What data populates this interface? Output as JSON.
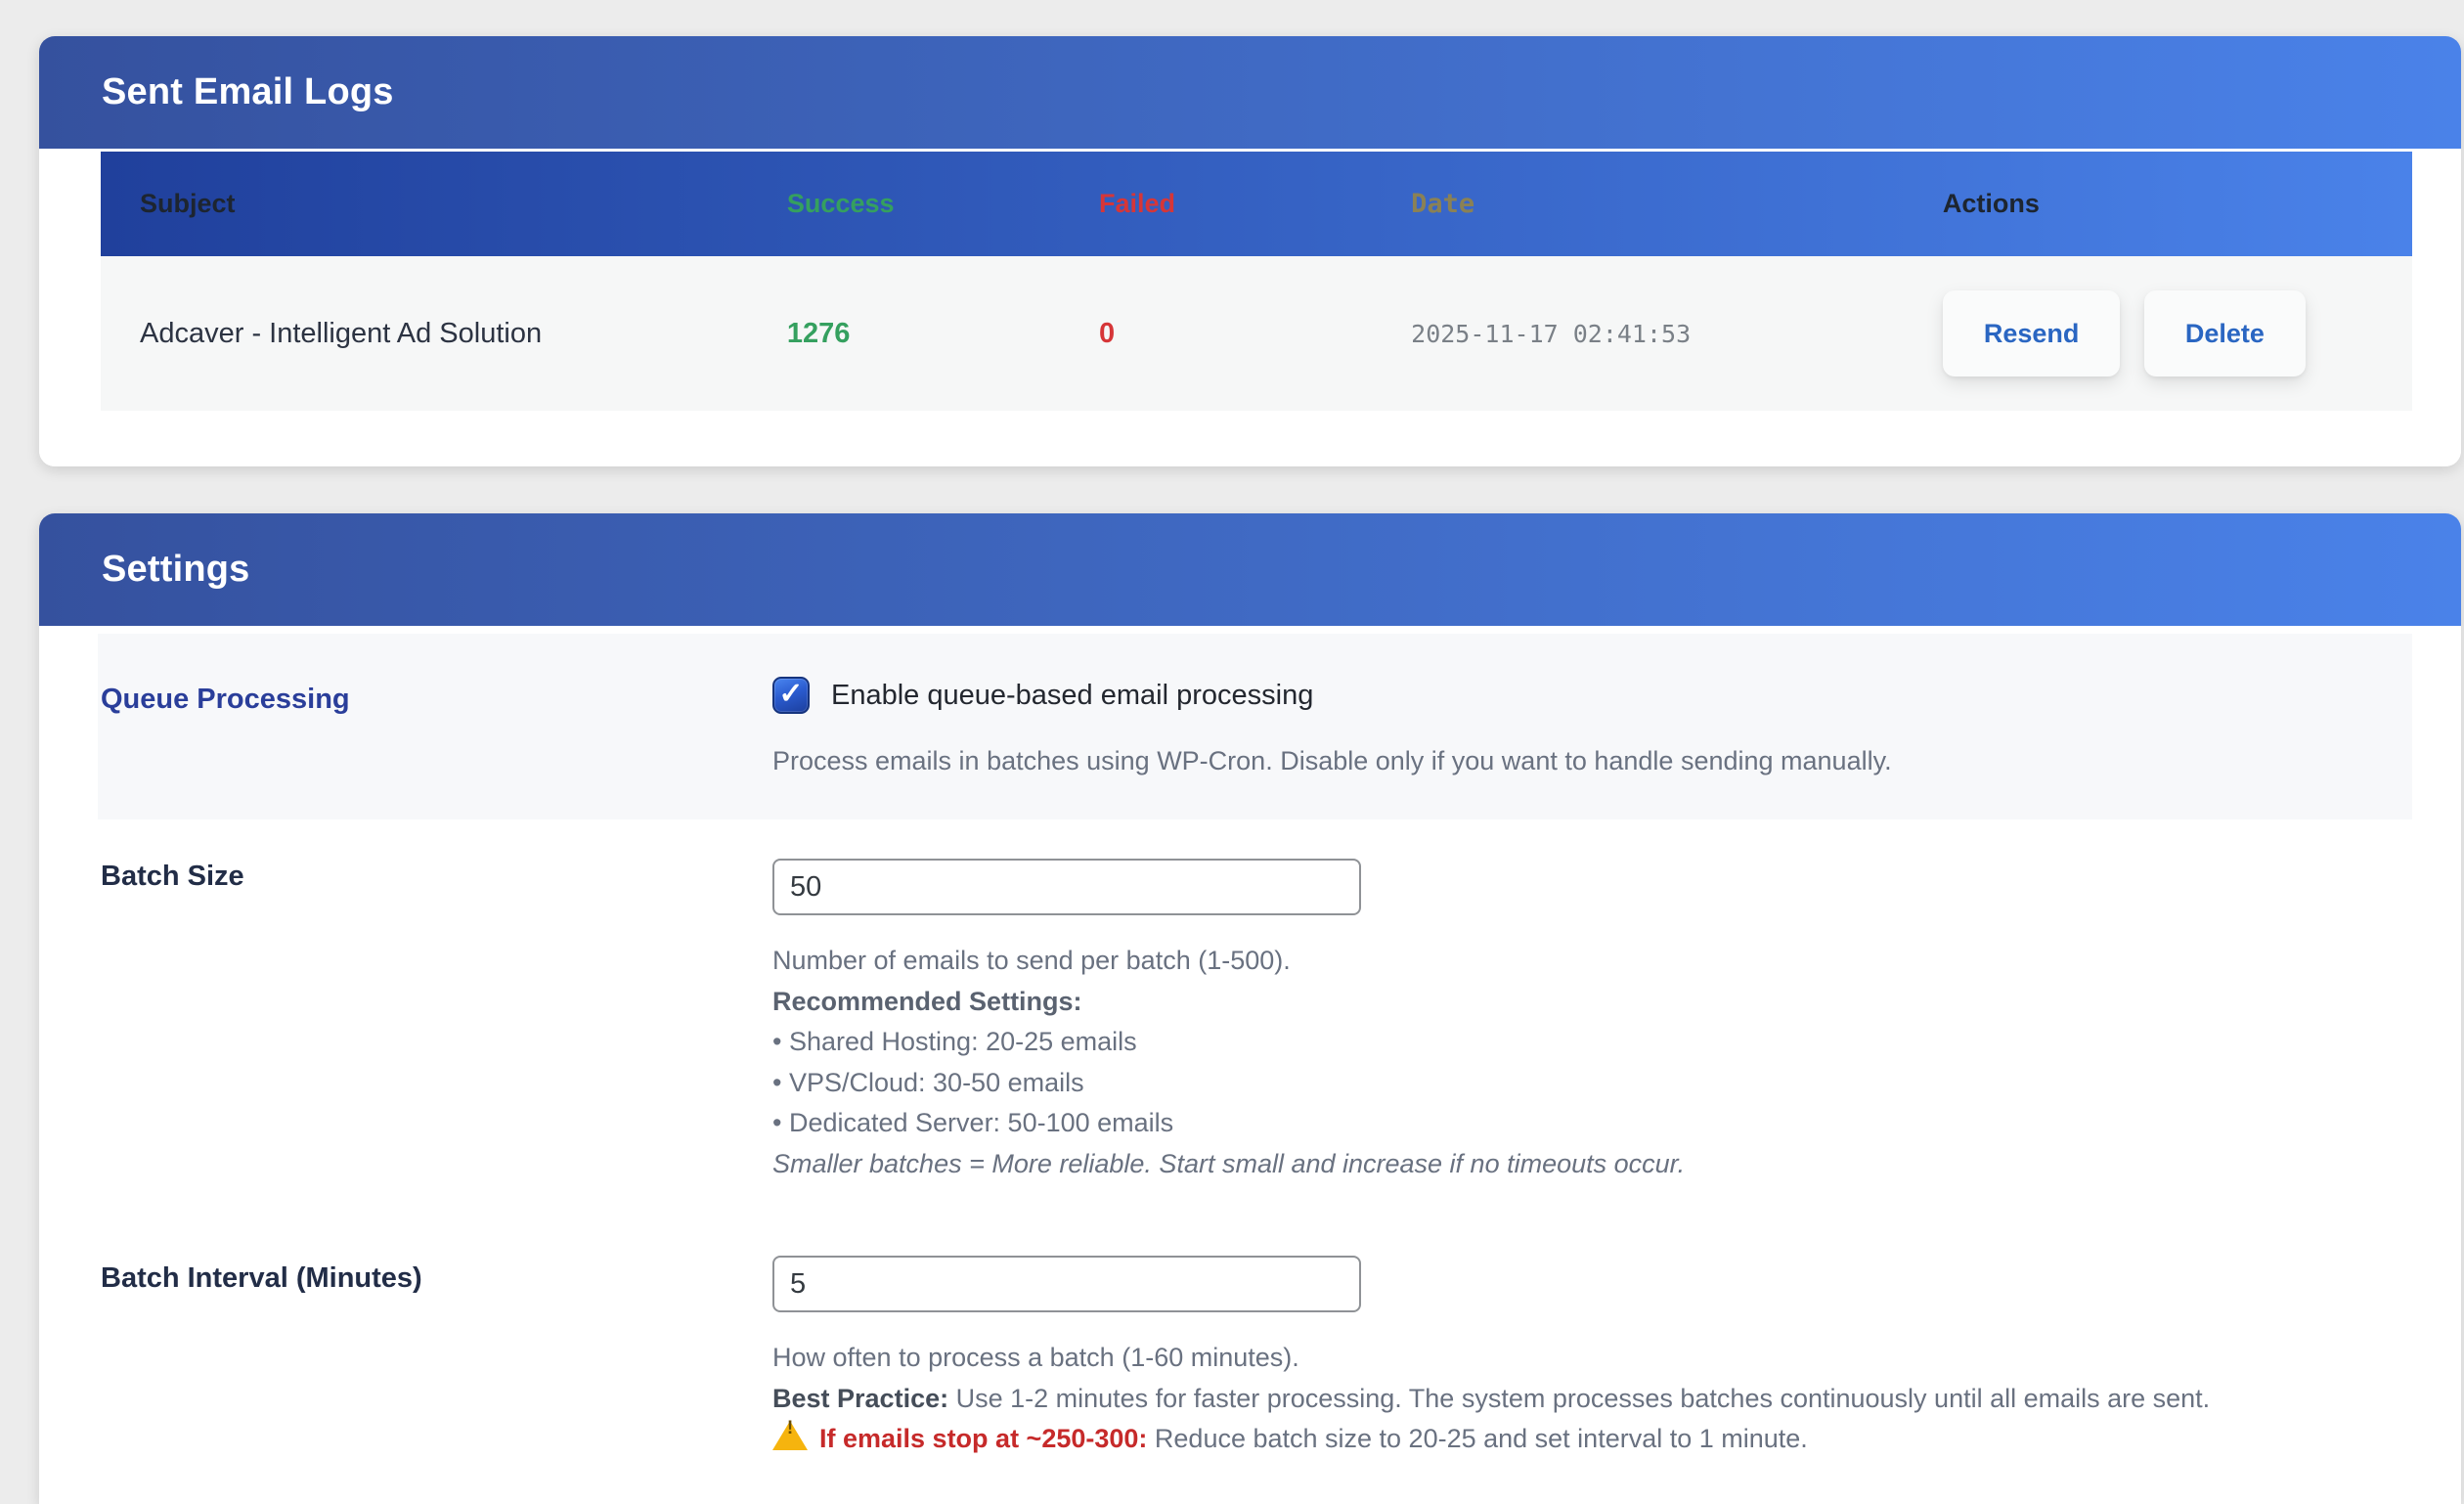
{
  "panels": {
    "logs": {
      "title": "Sent Email Logs",
      "columns": {
        "subject": "Subject",
        "success": "Success",
        "failed": "Failed",
        "date": "Date",
        "actions": "Actions"
      },
      "rows": [
        {
          "subject": "Adcaver - Intelligent Ad Solution",
          "success": "1276",
          "failed": "0",
          "date": "2025-11-17 02:41:53",
          "actions": {
            "resend": "Resend",
            "delete": "Delete"
          }
        }
      ]
    },
    "settings": {
      "title": "Settings",
      "queue_processing": {
        "label": "Queue Processing",
        "checkbox_label": "Enable queue-based email processing",
        "checked": true,
        "description": "Process emails in batches using WP-Cron. Disable only if you want to handle sending manually."
      },
      "batch_size": {
        "label": "Batch Size",
        "value": "50",
        "help": "Number of emails to send per batch (1-500).",
        "recommended_heading": "Recommended Settings:",
        "recommendations": [
          "• Shared Hosting: 20-25 emails",
          "• VPS/Cloud: 30-50 emails",
          "• Dedicated Server: 50-100 emails"
        ],
        "note": "Smaller batches = More reliable. Start small and increase if no timeouts occur."
      },
      "batch_interval": {
        "label": "Batch Interval (Minutes)",
        "value": "5",
        "help": "How often to process a batch (1-60 minutes).",
        "best_practice_label": "Best Practice:",
        "best_practice_text": " Use 1-2 minutes for faster processing. The system processes batches continuously until all emails are sent.",
        "warning_label": "If emails stop at ~250-300:",
        "warning_text": " Reduce batch size to 20-25 and set interval to 1 minute."
      }
    }
  },
  "icons": {
    "checkmark": "✓",
    "warning_exclamation": "!"
  },
  "colors": {
    "page-bg": "#ececec",
    "header-grad-start": "#35519e",
    "header-grad-end": "#4a82e9",
    "thead-grad-start": "#20409c",
    "col-subject": "#1d2530",
    "success-green": "#35a05f",
    "failed-red": "#d63638",
    "date-olive": "#8a8155",
    "row-bg": "#f6f7f7",
    "button-blue": "#2a66c2",
    "queue-blue": "#2a3e9a",
    "label-navy": "#222d47",
    "muted": "#697180",
    "stripe-bg": "#f7f8fa",
    "warning-red": "#c62a2a",
    "warning-yellow": "#f6b40e",
    "input-border": "#8f9296"
  }
}
